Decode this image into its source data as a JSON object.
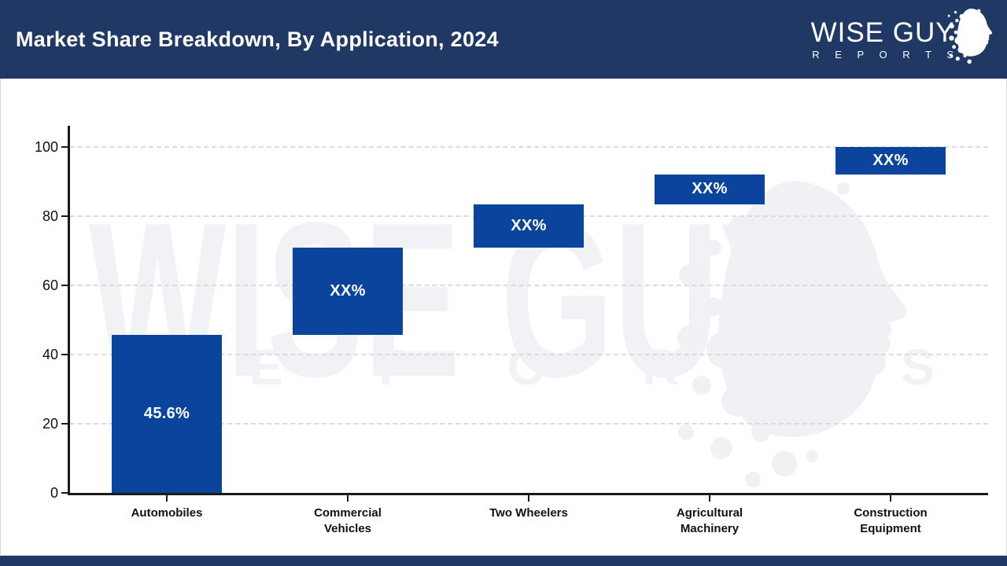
{
  "header": {
    "title": "Market Share Breakdown, By Application, 2024",
    "logo": {
      "line1": "WISE GUY",
      "line2": "R E P O R T S"
    }
  },
  "watermark": {
    "line1": "WISE GUY",
    "line2": "R E P O R T S"
  },
  "colors": {
    "header_bg": "#203864",
    "footer_bg": "#203864",
    "bar": "#0A449C",
    "bar_label": "#FFFFFF",
    "gridline": "#DCDCDC",
    "axis": "#1A1A1A",
    "watermark": "#F1F2F5"
  },
  "chart_data": {
    "type": "bar",
    "subtype": "waterfall",
    "title": "Market Share Breakdown, By Application, 2024",
    "categories": [
      "Automobiles",
      "Commercial Vehicles",
      "Two Wheelers",
      "Agricultural Machinery",
      "Construction Equipment"
    ],
    "segments": [
      {
        "category": "Automobiles",
        "start": 0,
        "end": 45.6,
        "label": "45.6%"
      },
      {
        "category": "Commercial Vehicles",
        "start": 45.6,
        "end": 71,
        "label": "XX%"
      },
      {
        "category": "Two Wheelers",
        "start": 71,
        "end": 83.5,
        "label": "XX%"
      },
      {
        "category": "Agricultural Machinery",
        "start": 83.5,
        "end": 92,
        "label": "XX%"
      },
      {
        "category": "Construction Equipment",
        "start": 92,
        "end": 100,
        "label": "XX%"
      }
    ],
    "xtick_label_lines": [
      [
        "Automobiles"
      ],
      [
        "Commercial",
        "Vehicles"
      ],
      [
        "Two Wheelers"
      ],
      [
        "Agricultural",
        "Machinery"
      ],
      [
        "Construction",
        "Equipment"
      ]
    ],
    "yticks": [
      0,
      20,
      40,
      60,
      80,
      100
    ],
    "ylim": [
      0,
      106
    ],
    "xlabel": "",
    "ylabel": "",
    "grid": "horizontal-dashed",
    "legend": "none"
  }
}
